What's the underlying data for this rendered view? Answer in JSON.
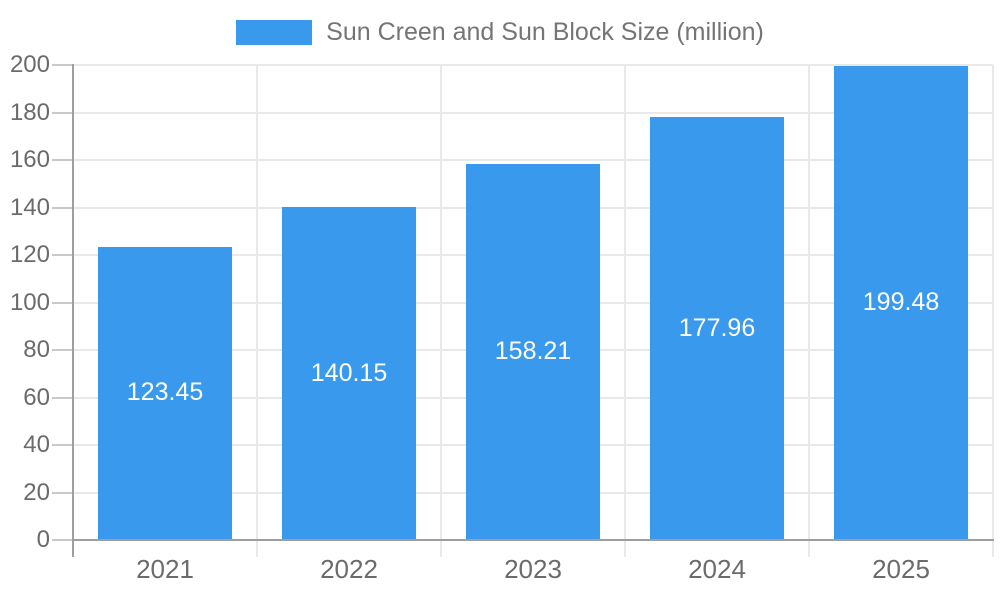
{
  "chart_data": {
    "type": "bar",
    "title": "Sun Creen and Sun Block Size (million)",
    "categories": [
      "2021",
      "2022",
      "2023",
      "2024",
      "2025"
    ],
    "values": [
      123.45,
      140.15,
      158.21,
      177.96,
      199.48
    ],
    "xlabel": "",
    "ylabel": "",
    "ylim": [
      0,
      200
    ],
    "y_ticks": [
      0,
      20,
      40,
      60,
      80,
      100,
      120,
      140,
      160,
      180,
      200
    ],
    "grid": true,
    "legend_position": "top-center",
    "bar_label_position": "inside-center",
    "colors": {
      "bar": "#3999ec",
      "bar_label": "#ffffff",
      "axis": "#9e9e9e",
      "tick": "#c9c9c9",
      "gridline": "#e9e9e9",
      "axis_label": "#6b6b6b",
      "title": "#757575",
      "background": "#ffffff"
    }
  }
}
